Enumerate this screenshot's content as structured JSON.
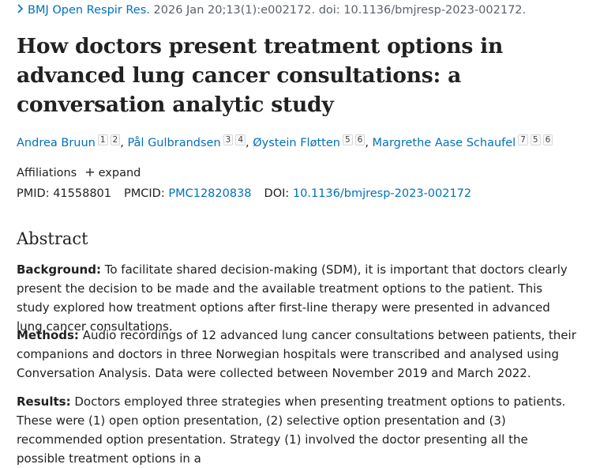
{
  "citation": {
    "journal": "BMJ Open Respir Res.",
    "details": " 2026 Jan 20;13(1):e002172. doi: 10.1136/bmjresp-2023-002172."
  },
  "title": "How doctors present treatment options in advanced lung cancer consultations: a conversation analytic study",
  "authors": [
    {
      "name": "Andrea Bruun",
      "affils": [
        "1",
        "2"
      ]
    },
    {
      "name": "Pål Gulbrandsen",
      "affils": [
        "3",
        "4"
      ]
    },
    {
      "name": "Øystein Fløtten",
      "affils": [
        "5",
        "6"
      ]
    },
    {
      "name": "Margrethe Aase Schaufel",
      "affils": [
        "7",
        "5",
        "6"
      ]
    }
  ],
  "affiliations": {
    "label": "Affiliations",
    "expand_label": "expand"
  },
  "identifiers": {
    "pmid_label": "PMID:",
    "pmid": "41558801",
    "pmcid_label": "PMCID:",
    "pmcid": "PMC12820838",
    "doi_label": "DOI:",
    "doi": "10.1136/bmjresp-2023-002172"
  },
  "abstract": {
    "heading": "Abstract",
    "background_label": "Background:",
    "background": " To facilitate shared decision-making (SDM), it is important that doctors clearly present the decision to be made and the available treatment options to the patient. This study explored how treatment options after first-line therapy were presented in advanced lung cancer consultations.",
    "methods_label": "Methods:",
    "methods": " Audio recordings of 12 advanced lung cancer consultations between patients, their companions and doctors in three Norwegian hospitals were transcribed and analysed using Conversation Analysis. Data were collected between November 2019 and March 2022.",
    "results_label": "Results:",
    "results": " Doctors employed three strategies when presenting treatment options to patients. These were (1) open option presentation, (2) selective option presentation and (3) recommended option presentation. Strategy (1) involved the doctor presenting all the possible treatment options in a"
  },
  "colors": {
    "link": "#0071bc",
    "text": "#212121",
    "muted": "#5b616b"
  }
}
